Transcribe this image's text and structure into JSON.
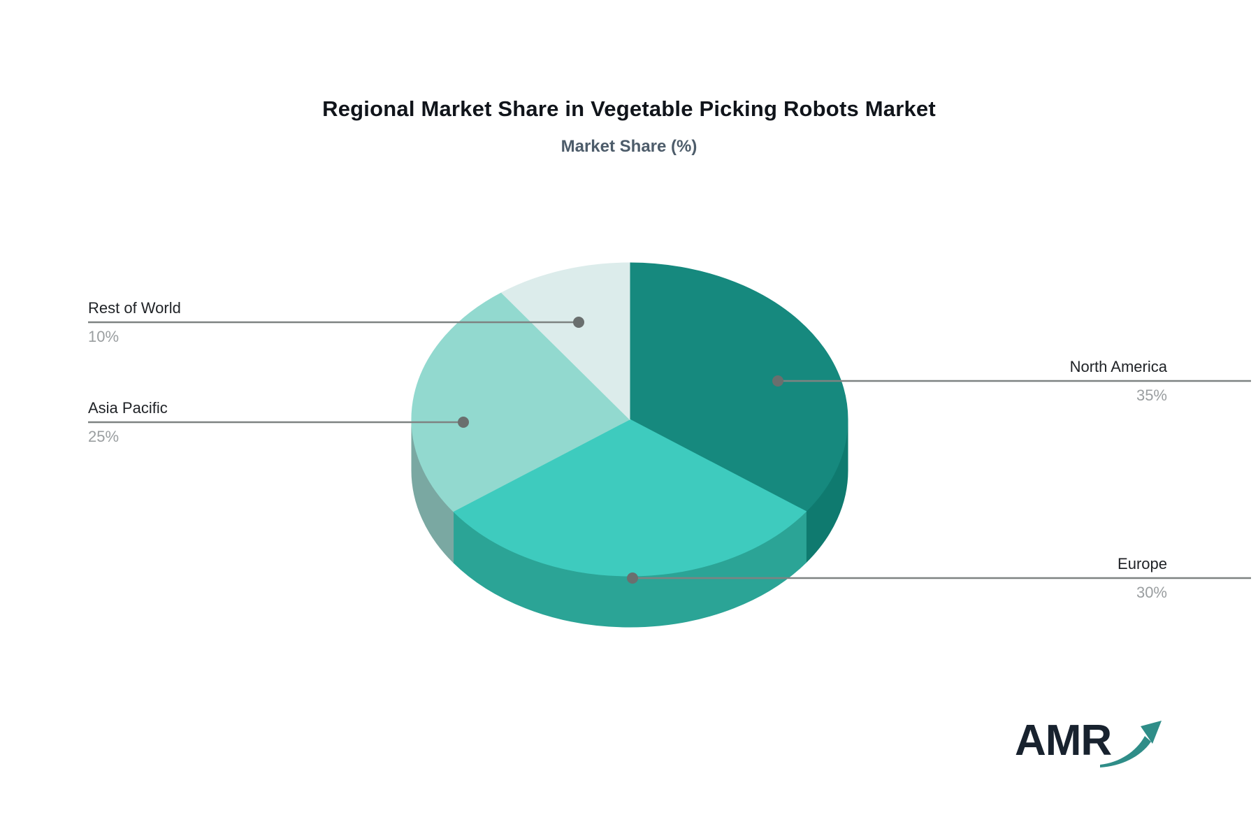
{
  "header": {
    "title": "Regional Market Share in Vegetable Picking Robots Market",
    "subtitle": "Market Share (%)"
  },
  "chart_data": {
    "type": "pie",
    "style": "3d",
    "title": "Regional Market Share in Vegetable Picking Robots Market",
    "subtitle": "Market Share (%)",
    "unit": "%",
    "start_angle_deg": 0,
    "direction": "clockwise",
    "legend": "none",
    "label_style": "leader-lines",
    "slices": [
      {
        "label": "North America",
        "value": 35,
        "display": "35%",
        "color": "#16897e",
        "rim_color": "#0f7a6f",
        "label_side": "right"
      },
      {
        "label": "Europe",
        "value": 30,
        "display": "30%",
        "color": "#3ecbbe",
        "rim_color": "#2ba496",
        "label_side": "right"
      },
      {
        "label": "Asia Pacific",
        "value": 25,
        "display": "25%",
        "color": "#92d9cf",
        "rim_color": "#7aa8a2",
        "label_side": "left"
      },
      {
        "label": "Rest of World",
        "value": 10,
        "display": "10%",
        "color": "#dceceb",
        "rim_color": "#c3d9d6",
        "label_side": "left"
      }
    ]
  },
  "styles": {
    "leader_line_color": "#7e8382",
    "leader_dot_color": "#6a6f6e",
    "label_text_color": "#1f2226",
    "value_text_color": "#9a9ea0",
    "title_color": "#10141a",
    "subtitle_color": "#4d5c6a"
  },
  "logo": {
    "text": "AMR",
    "text_color": "#18222e",
    "arrow_color": "#2f8d88"
  }
}
